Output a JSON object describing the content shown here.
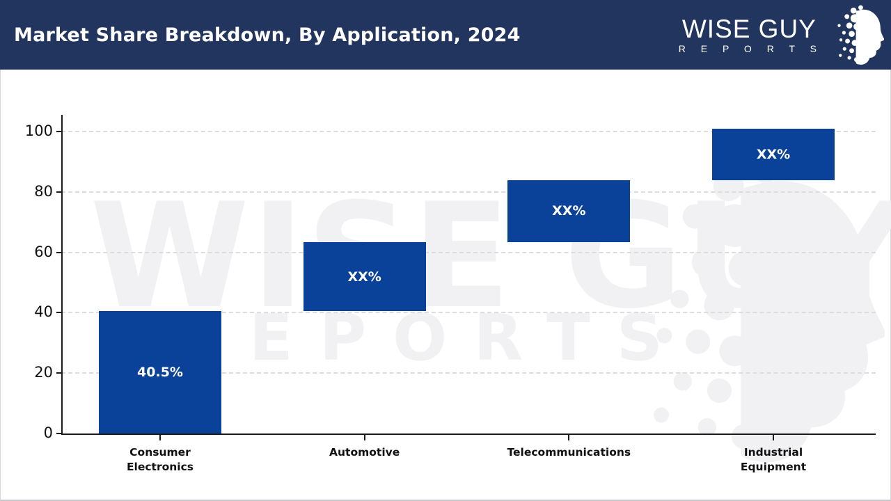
{
  "header": {
    "title": "Market Share Breakdown, By Application, 2024",
    "bg_color": "#21355e",
    "logo": {
      "name": "WISE GUY",
      "sub": "R E P O R T S"
    }
  },
  "watermark": {
    "line1": "WISE GUY",
    "line2": "REPORTS"
  },
  "colors": {
    "header_bg": "#21355e",
    "bar": "#0a429a",
    "bar_label": "#ffffff",
    "grid": "#dcdcdc",
    "axis": "#1a1a1a",
    "watermark": "#f1f1f4"
  },
  "chart_data": {
    "type": "bar",
    "variant": "waterfall-floating-bars",
    "title": "Market Share Breakdown, By Application, 2024",
    "categories": [
      {
        "name": "Consumer Electronics",
        "lines": [
          "Consumer",
          "Electronics"
        ]
      },
      {
        "name": "Automotive",
        "lines": [
          "Automotive"
        ]
      },
      {
        "name": "Telecommunications",
        "lines": [
          "Telecommunications"
        ]
      },
      {
        "name": "Industrial Equipment",
        "lines": [
          "Industrial",
          "Equipment"
        ]
      }
    ],
    "segments": [
      {
        "category": "Consumer Electronics",
        "start": 0,
        "end": 40.5,
        "label": "40.5%"
      },
      {
        "category": "Automotive",
        "start": 40.5,
        "end": 63.4,
        "label": "XX%"
      },
      {
        "category": "Telecommunications",
        "start": 63.4,
        "end": 83.9,
        "label": "XX%"
      },
      {
        "category": "Industrial Equipment",
        "start": 83.9,
        "end": 100.9,
        "label": "XX%"
      }
    ],
    "yticks": [
      0,
      20,
      40,
      60,
      80,
      100
    ],
    "ylim": [
      0,
      105.5
    ],
    "xlabel": "",
    "ylabel": "",
    "grid": "horizontal dashed",
    "legend": "none"
  }
}
